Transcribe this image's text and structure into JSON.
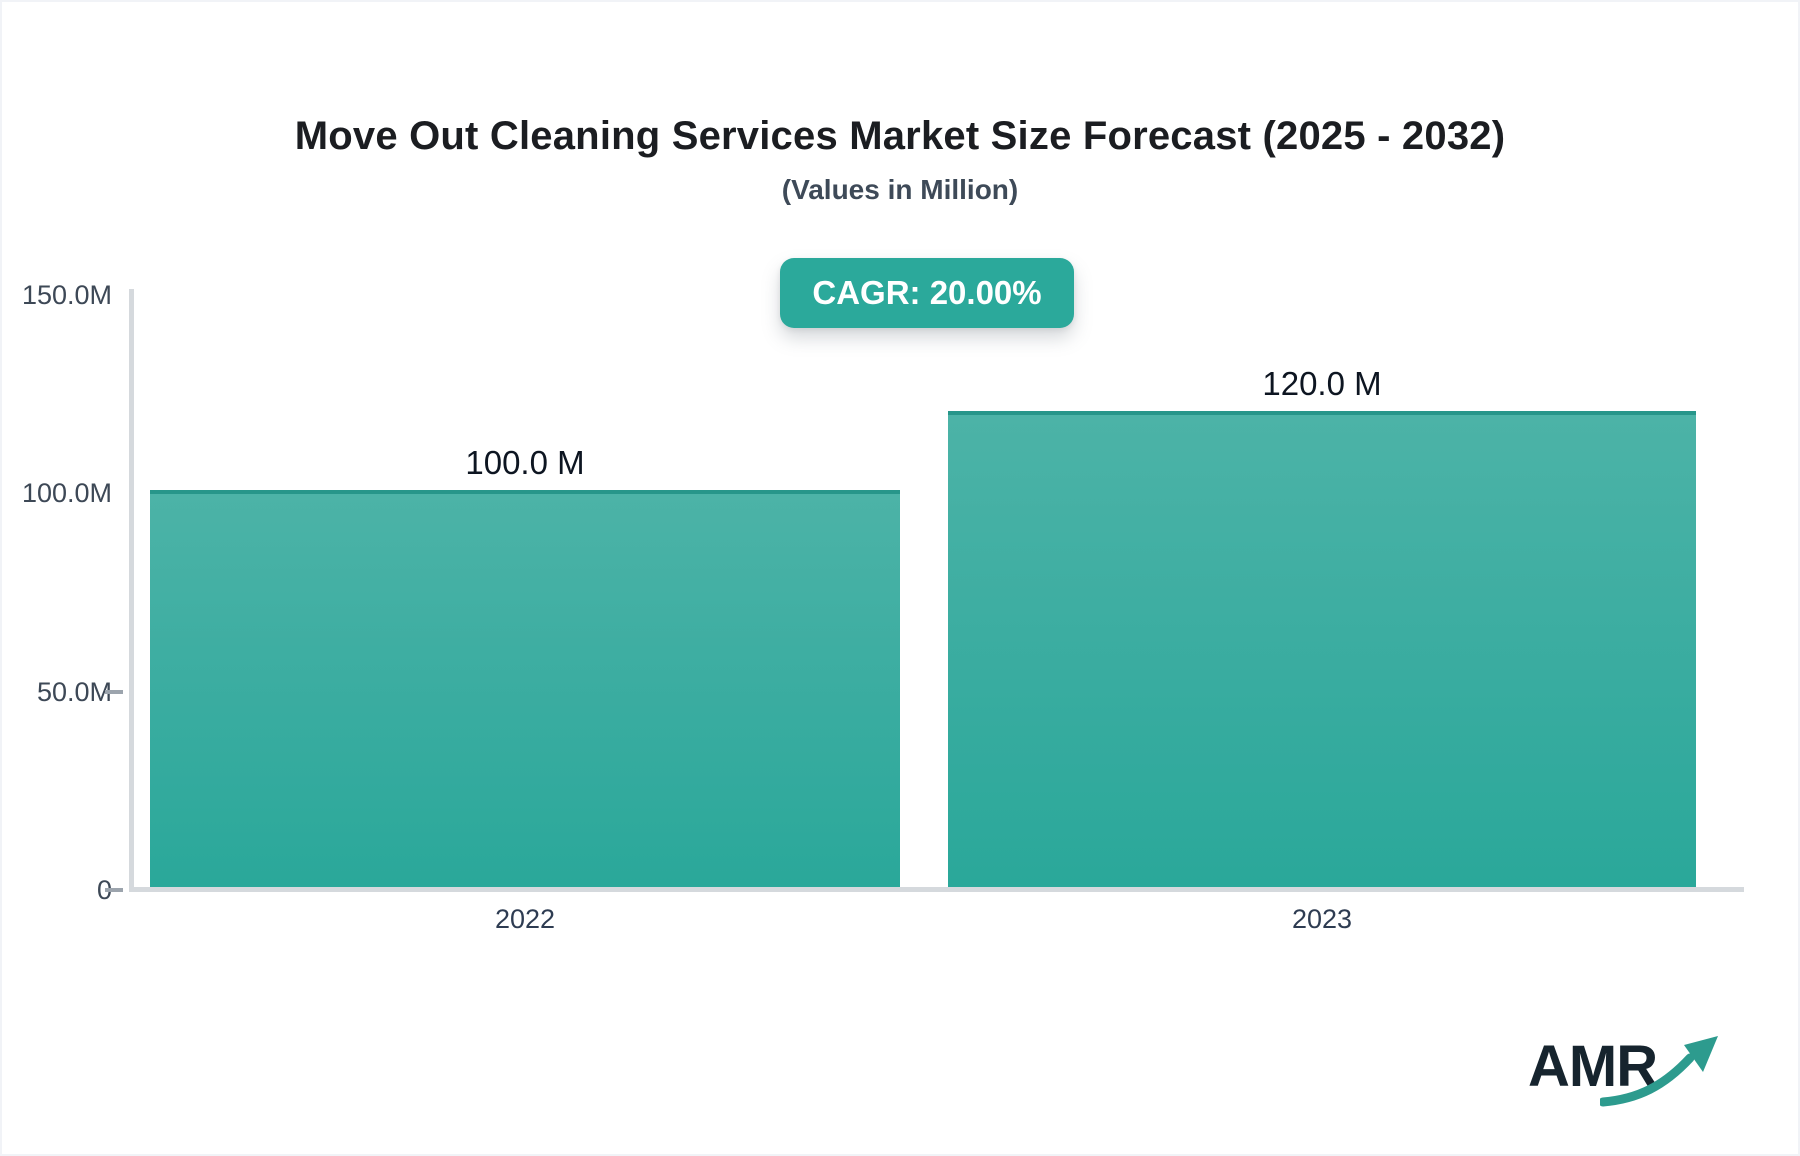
{
  "chart": {
    "title": "Move Out Cleaning Services Market Size Forecast (2025 - 2032)",
    "subtitle": "(Values in Million)",
    "cagr_label": "CAGR: 20.00%"
  },
  "logo": {
    "text": "AMR"
  },
  "chart_data": {
    "type": "bar",
    "categories": [
      "2022",
      "2023"
    ],
    "values": [
      100,
      120
    ],
    "value_labels": [
      "100.0 M",
      "120.0 M"
    ],
    "title": "Move Out Cleaning Services Market Size Forecast (2025 - 2032)",
    "subtitle": "(Values in Million)",
    "xlabel": "",
    "ylabel": "",
    "ylim": [
      0,
      150
    ],
    "y_ticks": [
      {
        "label": "150.0M",
        "value": 150,
        "dash": false
      },
      {
        "label": "100.0M",
        "value": 100,
        "dash": false
      },
      {
        "label": "50.0M",
        "value": 50,
        "dash": true
      },
      {
        "label": "0",
        "value": 0,
        "dash": true
      }
    ],
    "annotations": [
      "CAGR: 20.00%"
    ],
    "grid": false,
    "legend": false
  },
  "colors": {
    "accent_teal": "#2BA99B",
    "bar_gradient_top": "#4CB3A7",
    "bar_gradient_bottom": "#2AA89A",
    "bar_top_border": "#27968A",
    "axis_line": "#D5D9DD",
    "y_label_text": "#3D4856",
    "x_label_text": "#2E3C52",
    "value_label_text": "#0D1521",
    "title_text": "#1B1D21",
    "subtitle_text": "#3E4A58",
    "badge_text": "#FFFFFF",
    "logo_text": "#16242E",
    "logo_arrow": "#2D9B8E"
  }
}
